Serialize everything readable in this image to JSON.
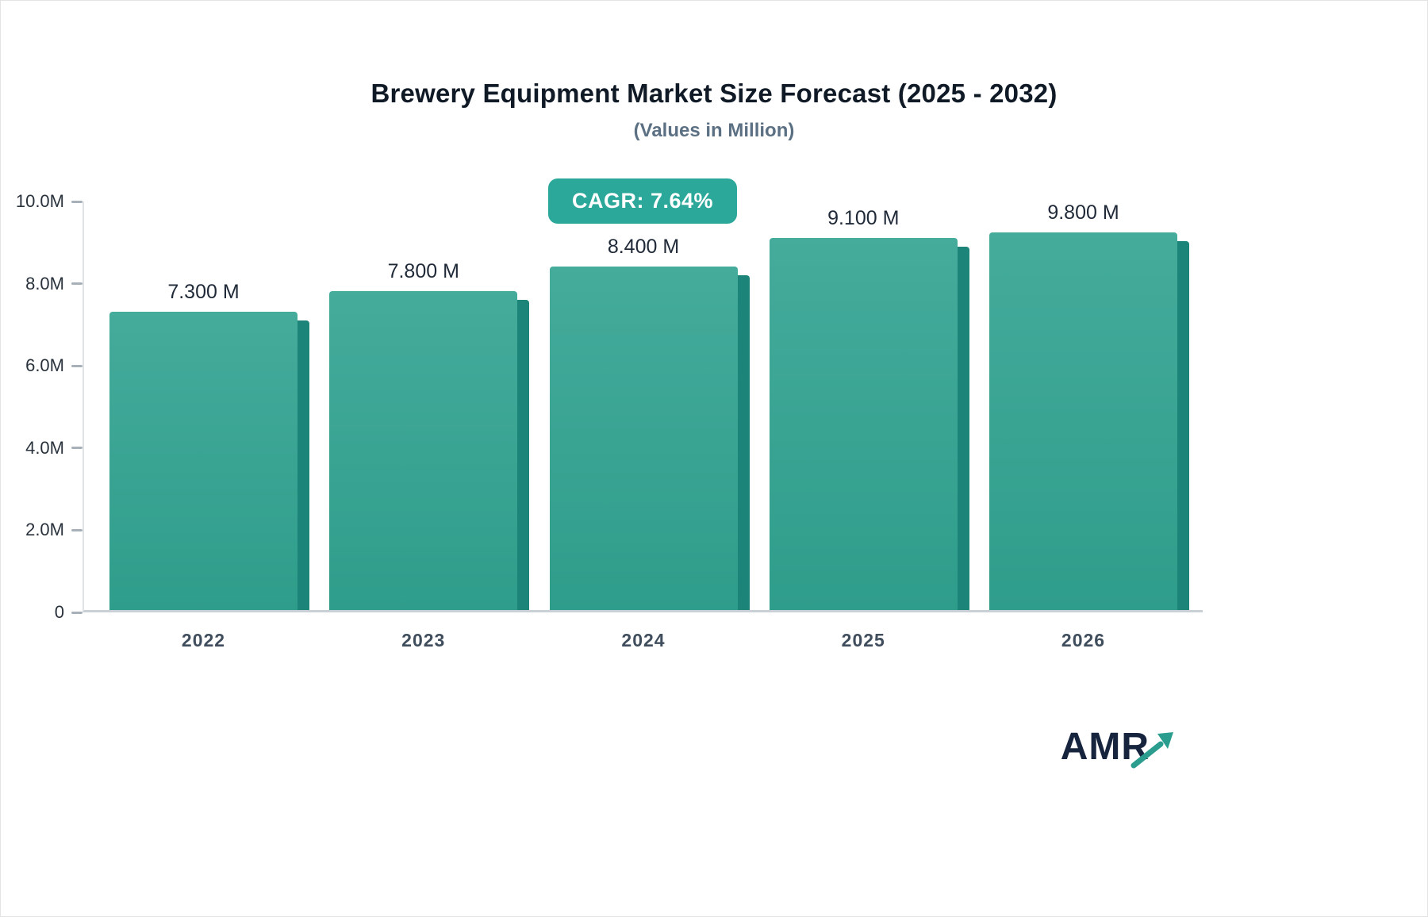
{
  "title": "Brewery Equipment Market Size Forecast (2025 - 2032)",
  "subtitle": "(Values in Million)",
  "cagr_badge": "CAGR: 7.64%",
  "logo": {
    "text": "AMR"
  },
  "chart_data": {
    "type": "bar",
    "title": "Brewery Equipment Market Size Forecast (2025 - 2032)",
    "subtitle": "(Values in Million)",
    "unit": "Million",
    "categories": [
      "2022",
      "2023",
      "2024",
      "2025",
      "2026"
    ],
    "values": [
      7.3,
      7.8,
      8.4,
      9.1,
      9.8
    ],
    "value_labels": [
      "7.300 M",
      "7.800 M",
      "8.400 M",
      "9.100 M",
      "9.800 M"
    ],
    "ylim": [
      0,
      10
    ],
    "yticks": [
      {
        "v": 0,
        "label": "0"
      },
      {
        "v": 2,
        "label": "2.0M"
      },
      {
        "v": 4,
        "label": "4.0M"
      },
      {
        "v": 6,
        "label": "6.0M"
      },
      {
        "v": 8,
        "label": "8.0M"
      },
      {
        "v": 10,
        "label": "10.0M"
      }
    ],
    "grid": false,
    "legend": "none",
    "bar_color_top": "#45ab9b",
    "bar_color_bottom": "#2f9d8b",
    "bar_side_color": "#1c8478",
    "badge_color": "#2ba89a",
    "cagr": "7.64%"
  }
}
